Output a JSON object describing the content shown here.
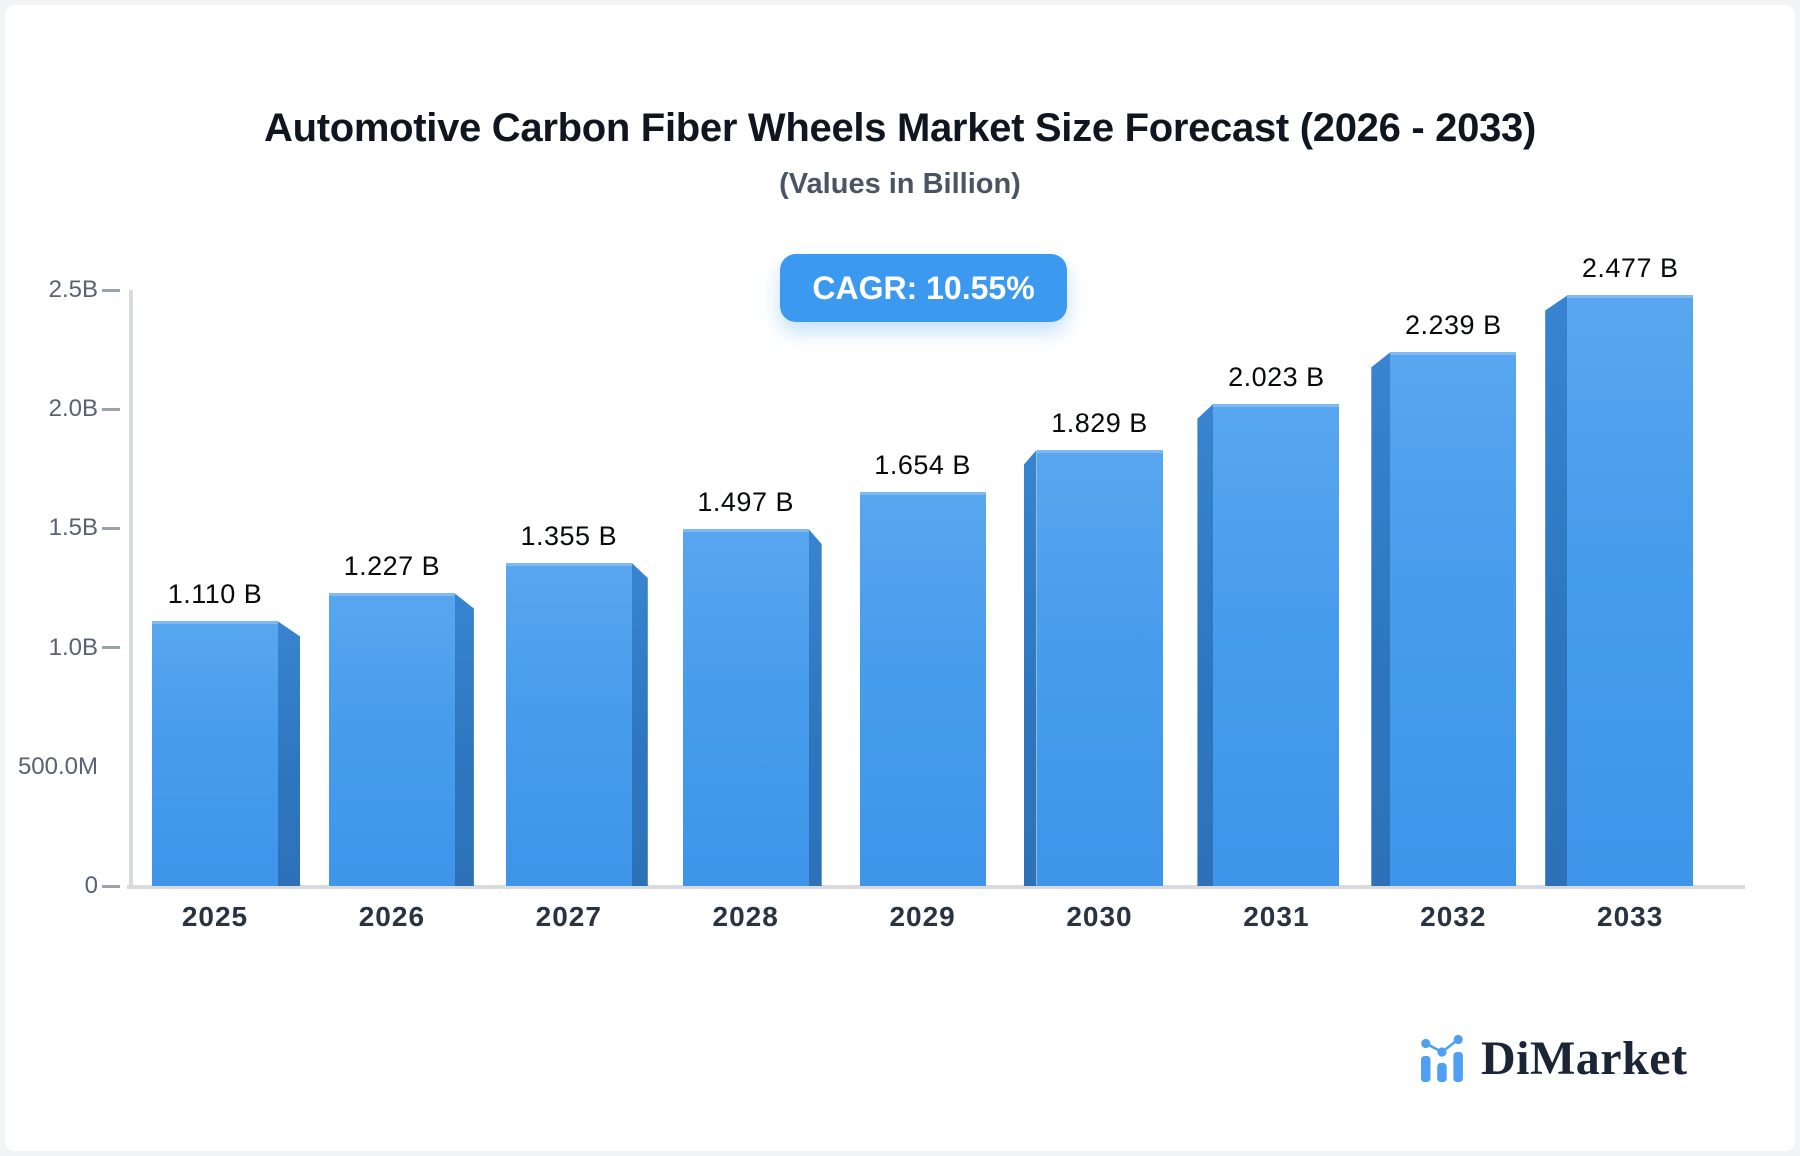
{
  "header": {
    "title": "Automotive Carbon Fiber Wheels Market Size Forecast (2026 - 2033)",
    "subtitle": "(Values in Billion)"
  },
  "badge": {
    "label": "CAGR: 10.55%",
    "background": "#3c99f0",
    "text_color": "#ffffff"
  },
  "chart_data": {
    "type": "bar",
    "title": "Automotive Carbon Fiber Wheels Market Size Forecast (2026 - 2033)",
    "subtitle": "(Values in Billion)",
    "annotation": "CAGR: 10.55%",
    "categories": [
      "2025",
      "2026",
      "2027",
      "2028",
      "2029",
      "2030",
      "2031",
      "2032",
      "2033"
    ],
    "values": [
      1.11,
      1.227,
      1.355,
      1.497,
      1.654,
      1.829,
      2.023,
      2.239,
      2.477
    ],
    "bar_labels": [
      "1.110 B",
      "1.227 B",
      "1.355 B",
      "1.497 B",
      "1.654 B",
      "1.829 B",
      "2.023 B",
      "2.239 B",
      "2.477 B"
    ],
    "xlabel": "",
    "ylabel": "",
    "ylim": [
      0,
      2.5
    ],
    "grid": false,
    "legend": "none",
    "y_ticks": [
      {
        "label": "0",
        "value": 0,
        "dash": true
      },
      {
        "label": "500.0M",
        "value": 0.5,
        "dash": false
      },
      {
        "label": "1.0B",
        "value": 1.0,
        "dash": true
      },
      {
        "label": "1.5B",
        "value": 1.5,
        "dash": true
      },
      {
        "label": "2.0B",
        "value": 2.0,
        "dash": true
      },
      {
        "label": "2.5B",
        "value": 2.5,
        "dash": true
      }
    ],
    "colors": {
      "bar_face_top": "#58a6ef",
      "bar_face_bottom": "#3e95e9",
      "bar_side": "#2d76bf",
      "bar_top_highlight": "#7fbaf3",
      "axis_line": "#d8dade",
      "tick_dash": "#9aa3ad",
      "tick_text": "#59626f",
      "category_text": "#2a3342",
      "value_text": "#07090c"
    }
  },
  "brand": {
    "name": "DiMarket",
    "icon": "bar-chart-logo-icon",
    "icon_color": "#4f9ff3",
    "text_color": "#1b2535"
  }
}
